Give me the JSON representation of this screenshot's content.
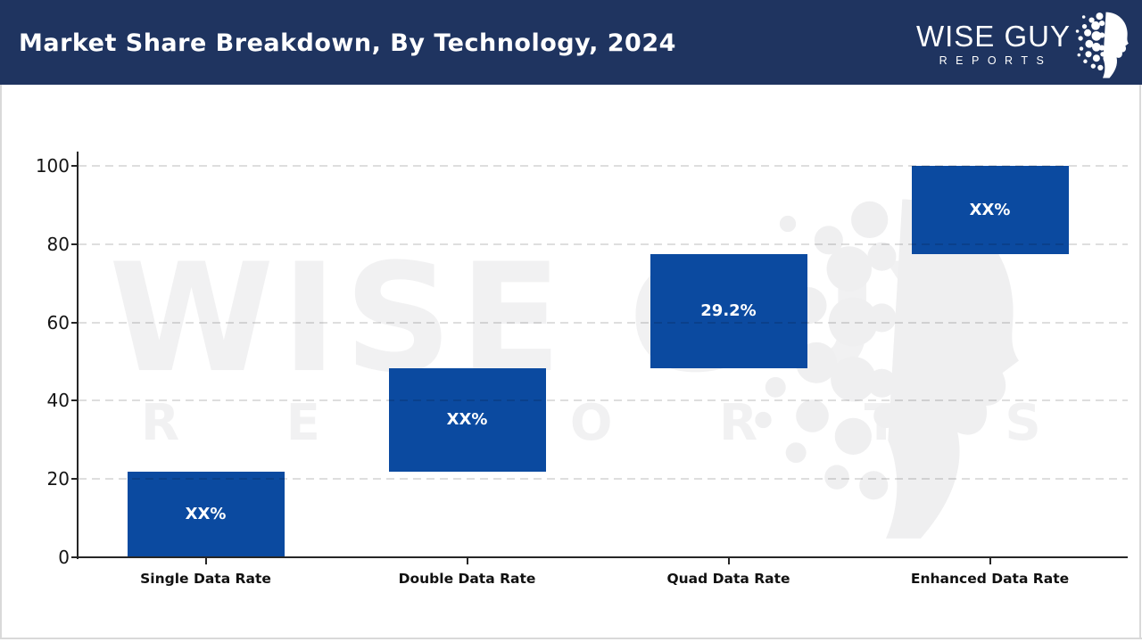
{
  "header": {
    "title": "Market Share Breakdown, By Technology, 2024",
    "logo": {
      "line1": "WISE GUY",
      "line2": "REPORTS"
    }
  },
  "watermark": {
    "line1": "WISE GUY",
    "line2": "R E P O R T S"
  },
  "colors": {
    "header_bg": "#1f3460",
    "bar": "#0b4aa0",
    "bar_label": "#ffffff",
    "grid_dash": "rgba(0,0,0,0.13)",
    "axis": "#262626",
    "tick_text": "#151515",
    "watermark": "#f1f1f2"
  },
  "chart_data": {
    "type": "bar",
    "subtype": "waterfall-floating-segments",
    "title": "Market Share Breakdown, By Technology, 2024",
    "categories": [
      "Single Data Rate",
      "Double Data Rate",
      "Quad Data Rate",
      "Enhanced Data Rate"
    ],
    "segments": [
      {
        "category": "Single Data Rate",
        "start": 0,
        "end": 21.9,
        "value": 21.9,
        "label": "XX%"
      },
      {
        "category": "Double Data Rate",
        "start": 21.9,
        "end": 48.2,
        "value": 26.3,
        "label": "XX%"
      },
      {
        "category": "Quad Data Rate",
        "start": 48.2,
        "end": 77.4,
        "value": 29.2,
        "label": "29.2%"
      },
      {
        "category": "Enhanced Data Rate",
        "start": 77.4,
        "end": 100,
        "value": 22.6,
        "label": "XX%"
      }
    ],
    "xlabel": "",
    "ylabel": "",
    "ylim": [
      0,
      100
    ],
    "yticks": [
      0,
      20,
      40,
      60,
      80,
      100
    ],
    "grid": "horizontal dashed, drawn over bars",
    "legend": "none"
  }
}
